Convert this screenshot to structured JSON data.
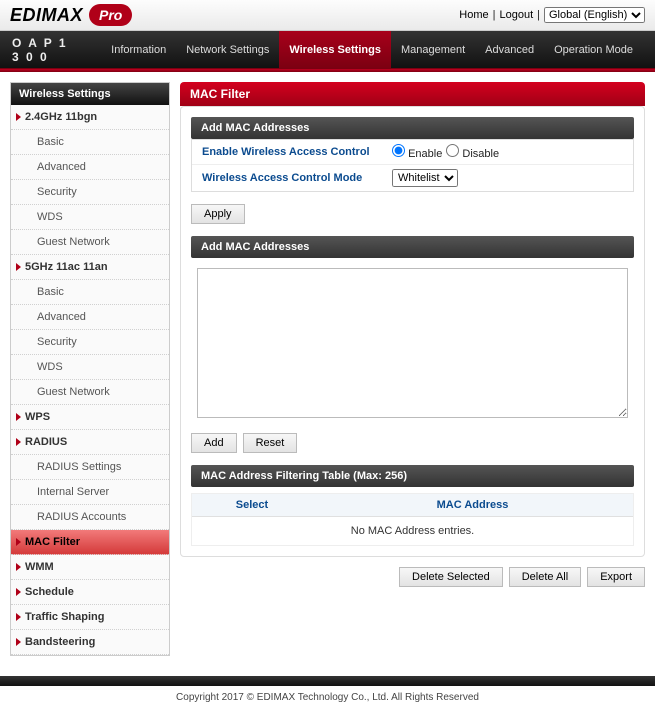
{
  "brand": {
    "name": "EDIMAX",
    "suffix": "Pro"
  },
  "topbar": {
    "home": "Home",
    "logout": "Logout",
    "lang_selected": "Global (English)"
  },
  "model": "O A P 1 3 0 0",
  "nav": {
    "items": [
      "Information",
      "Network Settings",
      "Wireless Settings",
      "Management",
      "Advanced",
      "Operation Mode"
    ],
    "active": 2
  },
  "sidebar": {
    "title": "Wireless Settings",
    "groups": [
      {
        "label": "2.4GHz 11bgn",
        "subs": [
          "Basic",
          "Advanced",
          "Security",
          "WDS",
          "Guest Network"
        ]
      },
      {
        "label": "5GHz 11ac 11an",
        "subs": [
          "Basic",
          "Advanced",
          "Security",
          "WDS",
          "Guest Network"
        ]
      },
      {
        "label": "WPS",
        "subs": []
      },
      {
        "label": "RADIUS",
        "subs": [
          "RADIUS Settings",
          "Internal Server",
          "RADIUS Accounts"
        ]
      },
      {
        "label": "MAC Filter",
        "subs": [],
        "active": true
      },
      {
        "label": "WMM",
        "subs": []
      },
      {
        "label": "Schedule",
        "subs": []
      },
      {
        "label": "Traffic Shaping",
        "subs": []
      },
      {
        "label": "Bandsteering",
        "subs": []
      }
    ]
  },
  "main": {
    "title": "MAC Filter",
    "section1": {
      "head": "Add MAC Addresses",
      "rows": {
        "enable_label": "Enable Wireless Access Control",
        "enable_opt": "Enable",
        "disable_opt": "Disable",
        "mode_label": "Wireless Access Control Mode",
        "mode_value": "Whitelist"
      },
      "apply": "Apply"
    },
    "section2": {
      "head": "Add MAC Addresses",
      "add": "Add",
      "reset": "Reset"
    },
    "section3": {
      "head": "MAC Address Filtering Table (Max: 256)",
      "col_select": "Select",
      "col_mac": "MAC Address",
      "empty": "No MAC Address entries."
    },
    "buttons": {
      "del_sel": "Delete Selected",
      "del_all": "Delete All",
      "export": "Export"
    }
  },
  "footer": "Copyright 2017 © EDIMAX Technology Co., Ltd. All Rights Reserved"
}
